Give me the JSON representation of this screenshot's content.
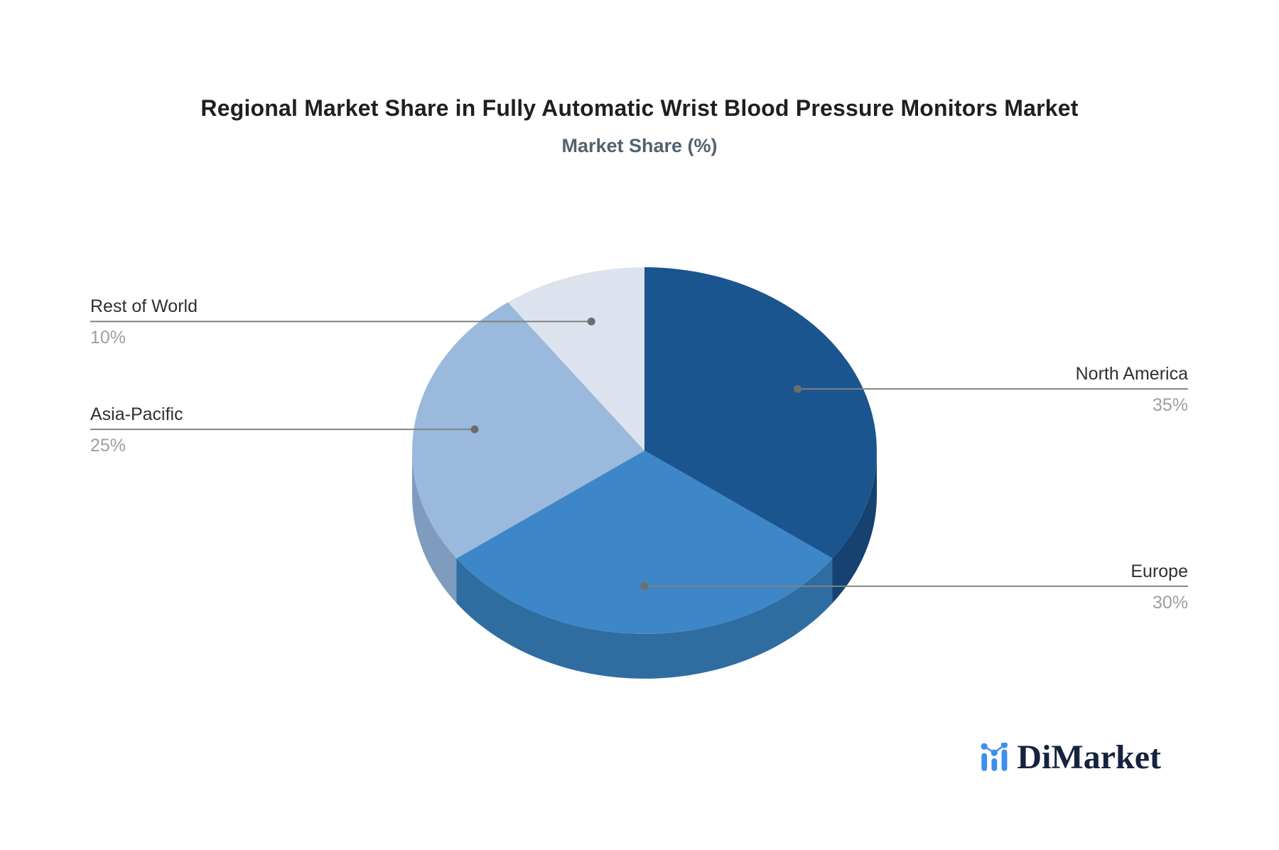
{
  "header": {
    "title": "Regional Market Share in Fully Automatic Wrist Blood Pressure Monitors Market",
    "subtitle": "Market Share (%)"
  },
  "chart_data": {
    "type": "pie",
    "style": "3d",
    "title": "Regional Market Share in Fully Automatic Wrist Blood Pressure Monitors Market",
    "subtitle": "Market Share (%)",
    "unit": "%",
    "start_angle_deg": 90,
    "direction": "clockwise",
    "legend": "none",
    "grid": "off",
    "slices": [
      {
        "name": "North America",
        "value": 35,
        "pct_label": "35%",
        "color": "#1b5590",
        "side_color": "#154270",
        "label_side": "right"
      },
      {
        "name": "Europe",
        "value": 30,
        "pct_label": "30%",
        "color": "#3d87c8",
        "side_color": "#2f6da1",
        "label_side": "right"
      },
      {
        "name": "Asia-Pacific",
        "value": 25,
        "pct_label": "25%",
        "color": "#9ab9dc",
        "side_color": "#7f9cbe",
        "label_side": "left"
      },
      {
        "name": "Rest of World",
        "value": 10,
        "pct_label": "10%",
        "color": "#dde3ee",
        "side_color": "#b9c4d6",
        "label_side": "left"
      }
    ],
    "label_colors": {
      "name": "#303030",
      "percent": "#9e9e9e",
      "leader_line": "#828282",
      "leader_dot": "#6d6d6d"
    }
  },
  "logo": {
    "text": "DiMarket",
    "icon": "bar-line-chart-icon",
    "accent_color": "#3e8ef0",
    "text_color": "#16233e"
  }
}
